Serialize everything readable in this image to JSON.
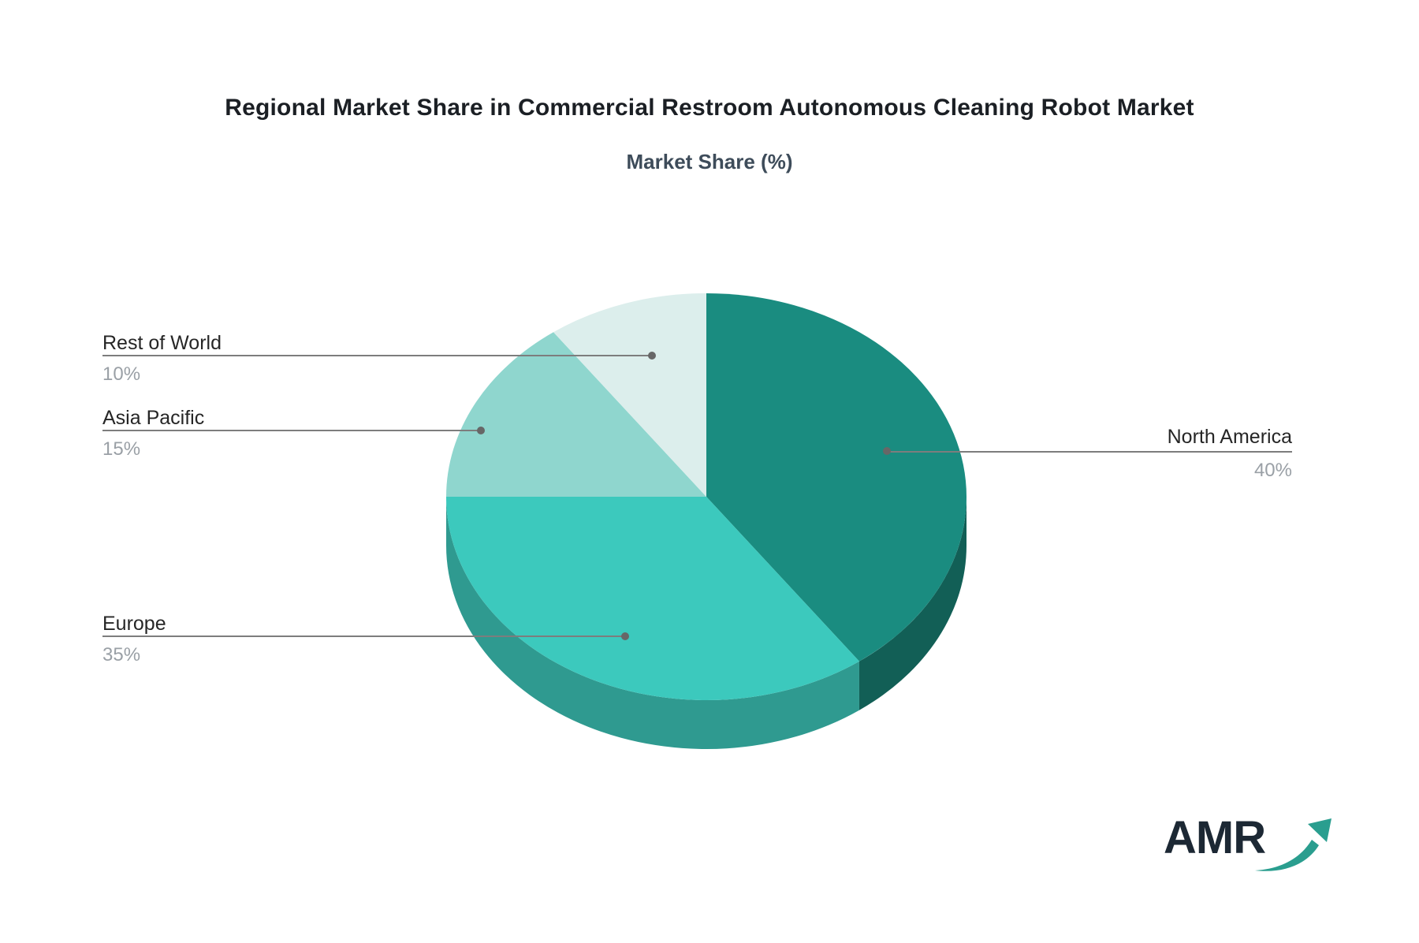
{
  "chart": {
    "title": "Regional Market Share in Commercial Restroom Autonomous Cleaning Robot Market",
    "subtitle": "Market Share (%)"
  },
  "chart_data": {
    "type": "pie",
    "style": "3d",
    "title": "Regional Market Share in Commercial Restroom Autonomous Cleaning Robot Market",
    "subtitle": "Market Share (%)",
    "unit": "%",
    "labels": [
      "North America",
      "Europe",
      "Asia Pacific",
      "Rest of World"
    ],
    "values": [
      40,
      35,
      15,
      10
    ],
    "colors": [
      "#1a8c80",
      "#3cc9bd",
      "#8fd6ce",
      "#dceeec"
    ],
    "side_colors": [
      "#125f56",
      "#2f9a90",
      "#6cbcb2",
      "#bcd8d4"
    ],
    "start_angle_deg": 0,
    "direction": "clockwise",
    "legend_position": "none",
    "labels_layout": "callout-lines"
  },
  "callouts": [
    {
      "label": "Rest of World",
      "value_label": "10%"
    },
    {
      "label": "Asia Pacific",
      "value_label": "15%"
    },
    {
      "label": "Europe",
      "value_label": "35%"
    },
    {
      "label": "North America",
      "value_label": "40%"
    }
  ],
  "branding": {
    "logo_text": "AMR",
    "accent_color": "#2a9e8f"
  }
}
